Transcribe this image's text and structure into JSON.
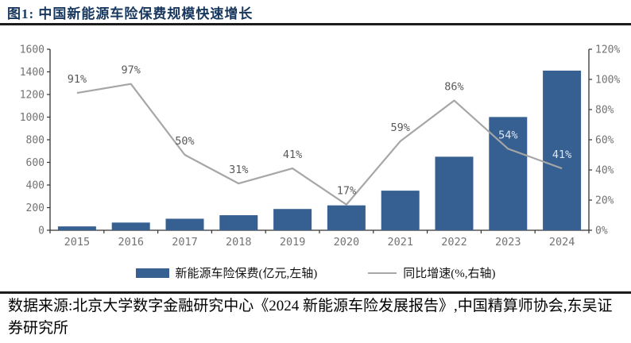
{
  "title": "图1:  中国新能源车险保费规模快速增长",
  "source_note": "数据来源:北京大学数字金融研究中心《2024 新能源车险发展报告》,中国精算师协会,东吴证券研究所",
  "legend": {
    "bar_label": "新能源车险保费(亿元,左轴)",
    "line_label": "同比增速(%,右轴)"
  },
  "colors": {
    "bar": "#366092",
    "line": "#A6A6A6",
    "title": "#17375E",
    "axis_line": "#333333",
    "axis_text": "#737373",
    "data_label": "#595959",
    "data_label_inside_bar": "#DCE6F2",
    "rule": "#1c1c1c"
  },
  "chart_data": {
    "type": "bar",
    "subtype": "bar+line combo, dual axis",
    "categories": [
      "2015",
      "2016",
      "2017",
      "2018",
      "2019",
      "2020",
      "2021",
      "2022",
      "2023",
      "2024"
    ],
    "series": [
      {
        "name": "新能源车险保费(亿元,左轴)",
        "type": "bar",
        "axis": "left",
        "values": [
          34,
          68,
          102,
          133,
          188,
          220,
          350,
          650,
          1001,
          1411
        ]
      },
      {
        "name": "同比增速(%,右轴)",
        "type": "line",
        "axis": "right",
        "values": [
          91,
          97,
          50,
          31,
          41,
          17,
          59,
          86,
          54,
          41
        ],
        "point_labels": [
          "91%",
          "97%",
          "50%",
          "31%",
          "41%",
          "17%",
          "59%",
          "86%",
          "54%",
          "41%"
        ]
      }
    ],
    "left_axis": {
      "min": 0,
      "max": 1600,
      "step": 200,
      "ticks": [
        "0",
        "200",
        "400",
        "600",
        "800",
        "1000",
        "1200",
        "1400",
        "1600"
      ]
    },
    "right_axis": {
      "min": 0,
      "max": 120,
      "step": 20,
      "ticks": [
        "0%",
        "20%",
        "40%",
        "60%",
        "80%",
        "100%",
        "120%"
      ]
    },
    "grid": false,
    "legend_position": "bottom",
    "title": "图1:  中国新能源车险保费规模快速增长"
  }
}
